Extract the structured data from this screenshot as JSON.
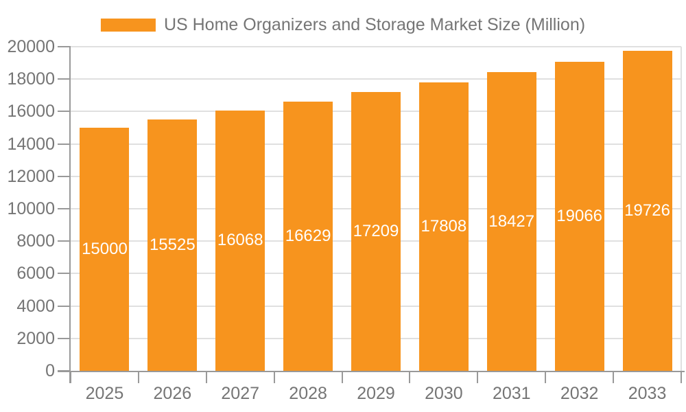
{
  "legend": {
    "label": "US Home Organizers and Storage Market Size (Million)"
  },
  "colors": {
    "bar": "#f7941e",
    "axis": "#999999",
    "gridline": "#e0e0e0",
    "tick_text": "#757575",
    "bar_label_text": "#ffffff",
    "background": "#ffffff"
  },
  "chart_data": {
    "type": "bar",
    "title": "US Home Organizers and Storage Market Size (Million)",
    "categories": [
      "2025",
      "2026",
      "2027",
      "2028",
      "2029",
      "2030",
      "2031",
      "2032",
      "2033"
    ],
    "values": [
      15000,
      15525,
      16068,
      16629,
      17209,
      17808,
      18427,
      19066,
      19726
    ],
    "xlabel": "",
    "ylabel": "",
    "ylim": [
      0,
      20000
    ],
    "y_ticks": [
      0,
      2000,
      4000,
      6000,
      8000,
      10000,
      12000,
      14000,
      16000,
      18000,
      20000
    ],
    "grid": true,
    "legend_position": "top",
    "bar_labels_inside": true
  }
}
